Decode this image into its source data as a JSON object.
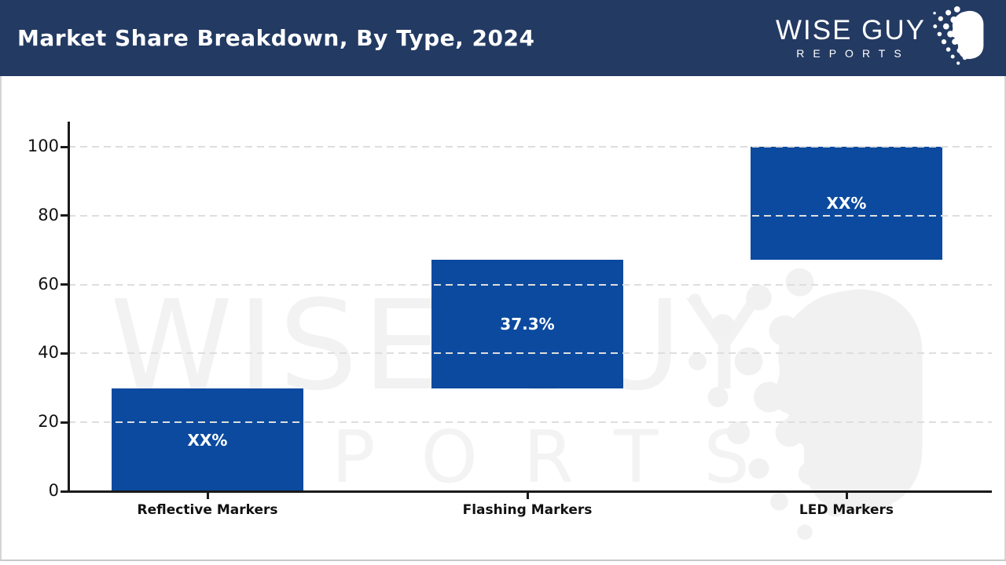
{
  "header": {
    "title": "Market Share Breakdown, By Type, 2024",
    "bg_color": "#233a63",
    "logo": {
      "line1": "WISE GUY",
      "line2": "REPORTS"
    }
  },
  "watermark": {
    "line1": "WISE GUY",
    "line2": "REPORTS"
  },
  "chart_data": {
    "type": "bar",
    "subtype": "floating-stacked-progression",
    "title": "Market Share Breakdown, By Type, 2024",
    "categories": [
      "Reflective Markers",
      "Flashing Markers",
      "LED Markers"
    ],
    "bars": [
      {
        "category": "Reflective Markers",
        "start": 0,
        "end": 29.8,
        "label": "XX%"
      },
      {
        "category": "Flashing Markers",
        "start": 29.8,
        "end": 67.1,
        "label": "37.3%"
      },
      {
        "category": "LED Markers",
        "start": 67.1,
        "end": 100,
        "label": "XX%"
      }
    ],
    "yticks": [
      0,
      20,
      40,
      60,
      80,
      100
    ],
    "ylim": [
      0,
      107
    ],
    "xlabel": "",
    "ylabel": "",
    "grid": "horizontal-dashed-over-bars",
    "legend": "none",
    "bar_color": "#0b4a9f",
    "bar_label_color": "#ffffff",
    "grid_color": "#dedede",
    "axis_color": "#1a1a1a"
  }
}
